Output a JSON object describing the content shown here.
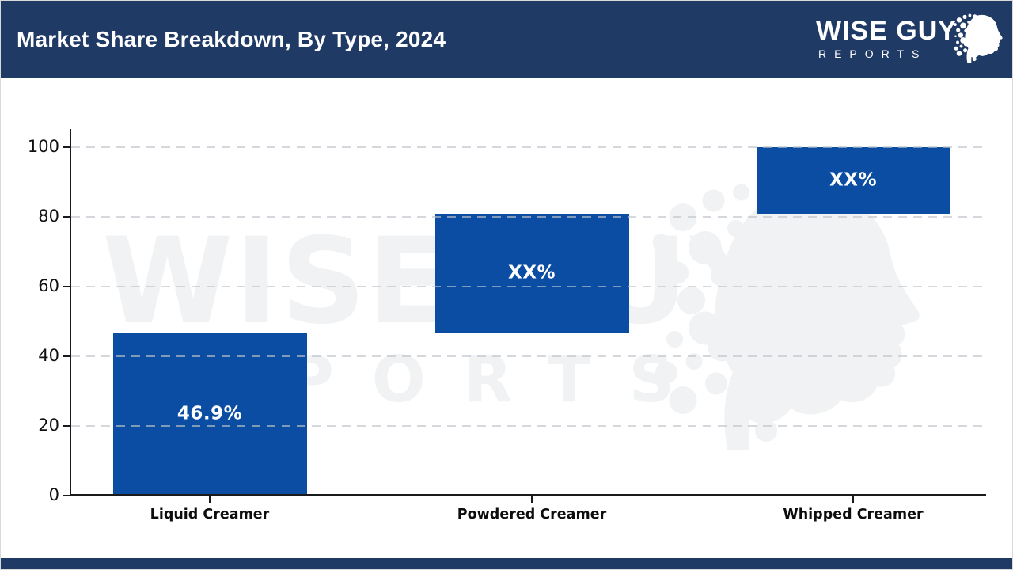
{
  "header": {
    "title": "Market Share Breakdown, By Type, 2024",
    "background": "#203A66",
    "text_color": "#FFFFFF",
    "brand": {
      "line1": "WISE GUY",
      "line2": "REPORTS"
    }
  },
  "watermark": {
    "line1": "WISE GUY",
    "line2": "REPORTS",
    "color": "#F1F2F4"
  },
  "chart_data": {
    "type": "bar",
    "subtype": "waterfall",
    "title": "Market Share Breakdown, By Type, 2024",
    "categories": [
      "Liquid Creamer",
      "Powdered Creamer",
      "Whipped Creamer"
    ],
    "series": [
      {
        "name": "Market Share (%)",
        "segments": [
          {
            "category": "Liquid Creamer",
            "start": 0,
            "end": 46.9,
            "label": "46.9%"
          },
          {
            "category": "Powdered Creamer",
            "start": 46.9,
            "end": 80.8,
            "label": "XX%"
          },
          {
            "category": "Whipped Creamer",
            "start": 80.8,
            "end": 100,
            "label": "XX%"
          }
        ]
      }
    ],
    "ylim": [
      0,
      100
    ],
    "yticks": [
      0,
      20,
      40,
      60,
      80,
      100
    ],
    "xlabel": "",
    "ylabel": "",
    "legend": false,
    "grid": "horizontal-dashed",
    "grid_color": "#D9D9D9",
    "bar_color": "#0B4DA2",
    "bar_label_color": "#FFFFFF",
    "axis_color": "#1A1A1A"
  },
  "footer": {
    "background": "#203A66"
  }
}
